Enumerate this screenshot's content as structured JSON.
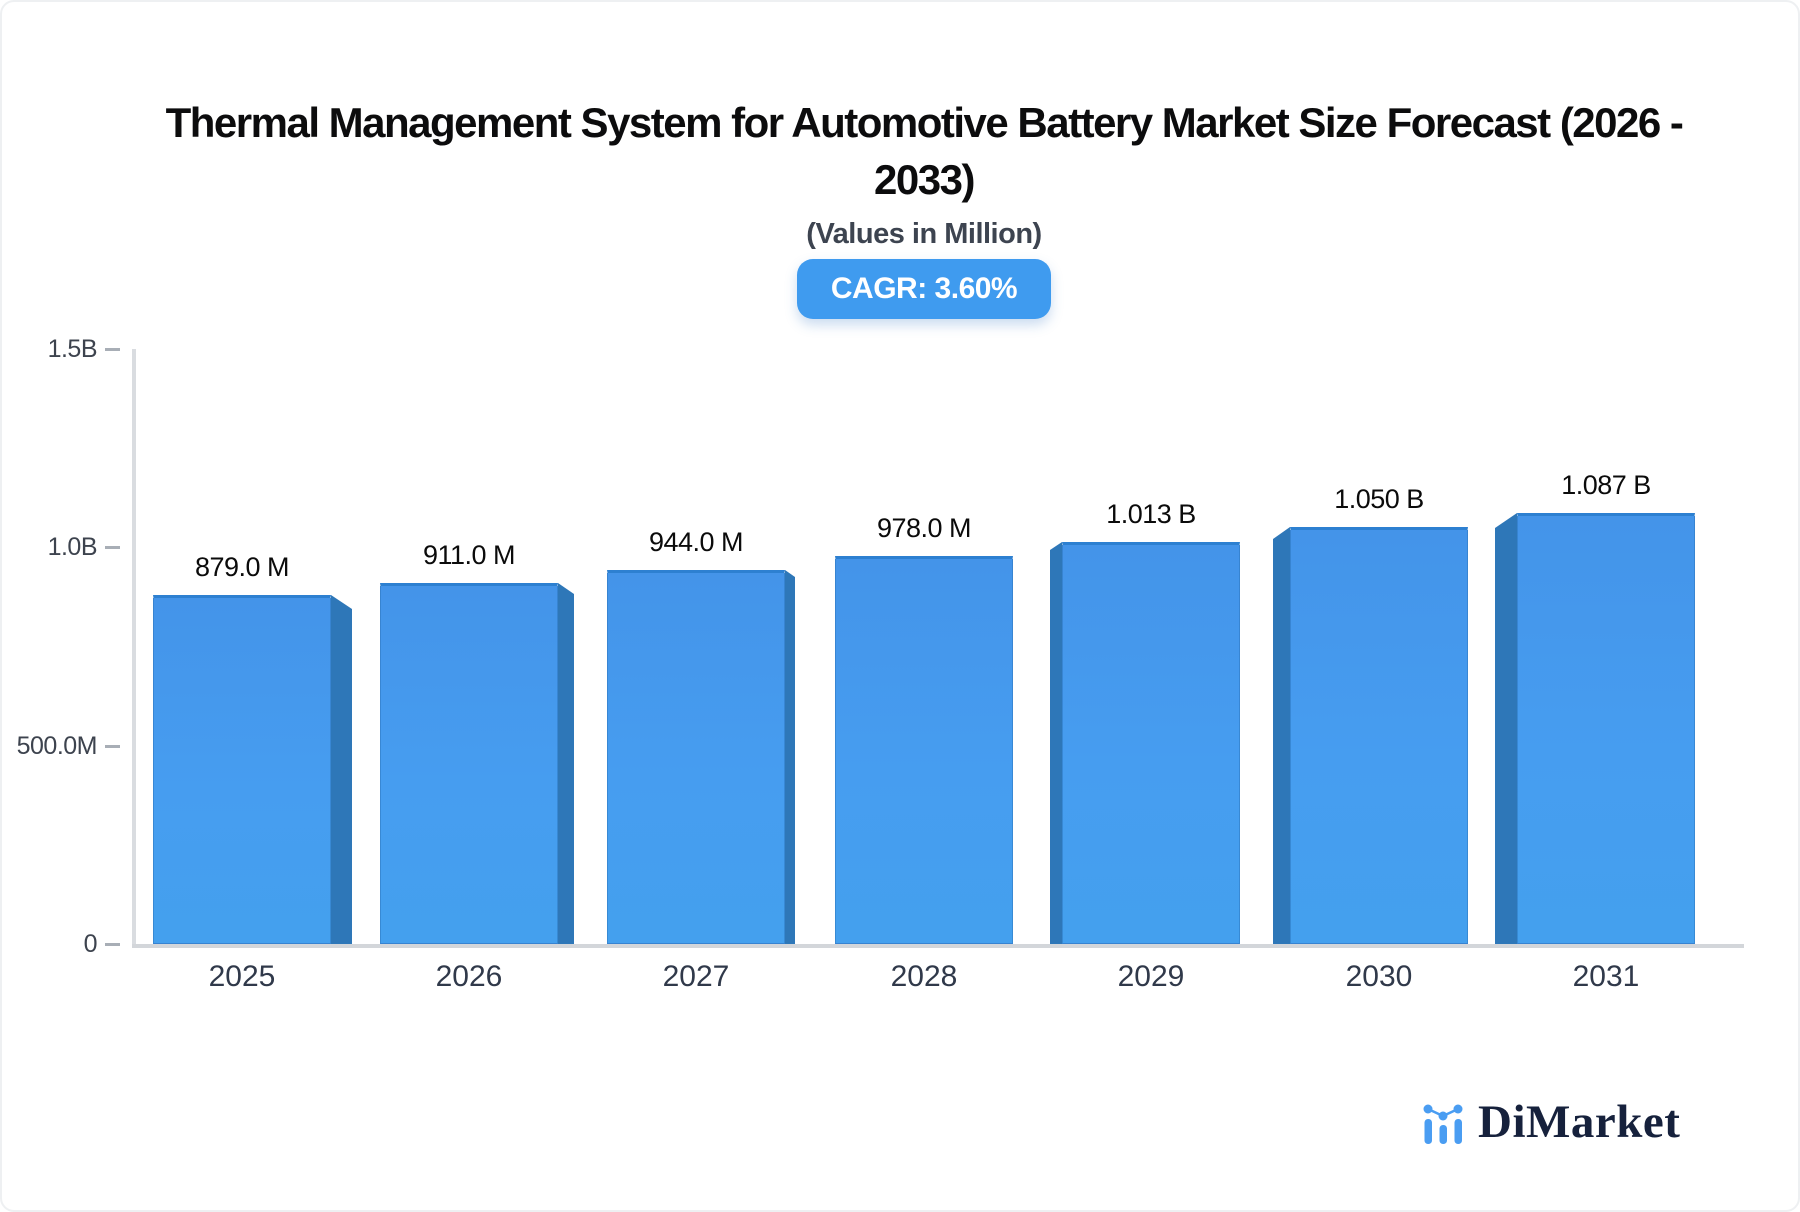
{
  "title": {
    "line1": "Thermal Management System for Automotive Battery Market Size Forecast (2026 -",
    "line2": "2033)"
  },
  "subtitle": "(Values in Million)",
  "badge": {
    "label": "CAGR: 3.60%",
    "bg_color": "#3f9bef",
    "text_color": "#ffffff"
  },
  "chart_data": {
    "type": "bar",
    "title": "Thermal Management System for Automotive Battery Market Size Forecast (2026 - 2033)",
    "subtitle": "(Values in Million)",
    "cagr": "3.60%",
    "categories": [
      "2025",
      "2026",
      "2027",
      "2028",
      "2029",
      "2030",
      "2031"
    ],
    "values": [
      879,
      911,
      944,
      978,
      1013,
      1050,
      1087
    ],
    "unit": "Million",
    "bar_labels": [
      "879.0 M",
      "911.0 M",
      "944.0 M",
      "978.0 M",
      "1.013 B",
      "1.050 B",
      "1.087 B"
    ],
    "y_ticks": [
      {
        "label": "1.5B",
        "value": 1500
      },
      {
        "label": "1.0B",
        "value": 1000
      },
      {
        "label": "500.0M",
        "value": 500
      },
      {
        "label": "0",
        "value": 0
      }
    ],
    "ylim": [
      0,
      1500
    ],
    "xlabel": "",
    "ylabel": "",
    "grid": false,
    "legend": false,
    "bar_color": "#4197EB",
    "bar_side_color": "#2E77B8",
    "effect": "3d-perspective-center"
  },
  "logo": {
    "text": "DiMarket",
    "icon": "bar-chart-logo-icon",
    "accent": "#4A9DF2",
    "text_color": "#16213C"
  }
}
